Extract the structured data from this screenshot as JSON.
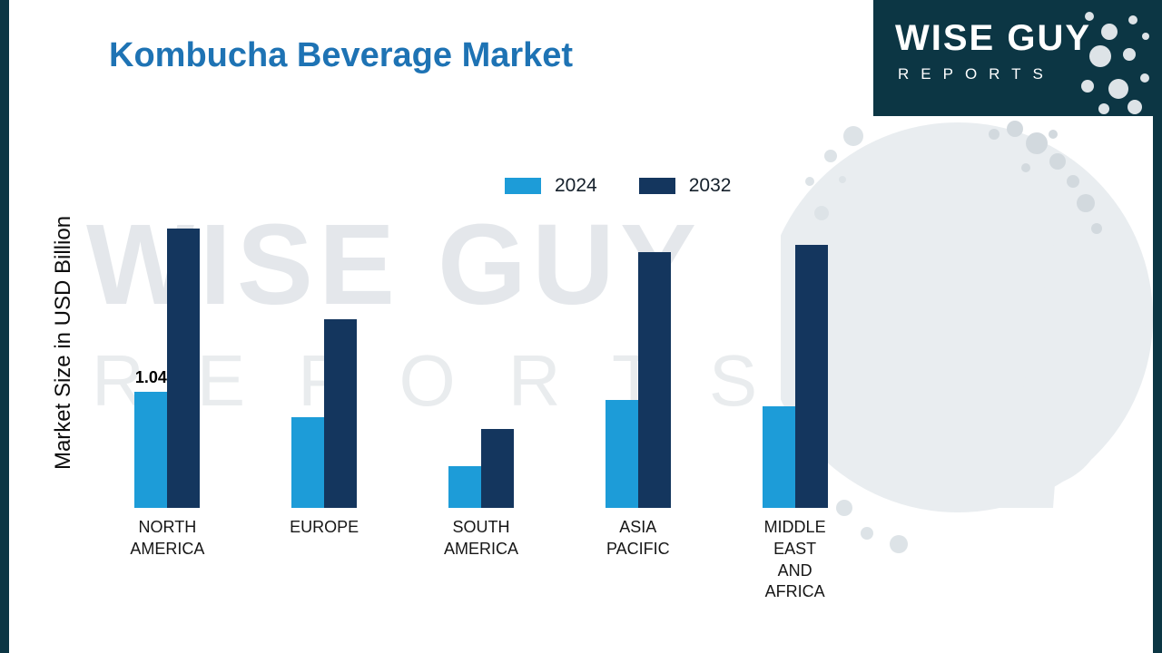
{
  "page": {
    "title": "Kombucha Beverage Market"
  },
  "logo": {
    "wordmark": "WISE GUY",
    "subtitle": "REPORTS"
  },
  "watermark": {
    "line1": "WISE GUY",
    "line2": "REPORTS"
  },
  "colors": {
    "title": "#1e73b4",
    "logo_bg": "#0c3644",
    "bar_2024": "#1d9cd8",
    "bar_2032": "#14365e",
    "head": "#e9edf0"
  },
  "chart_data": {
    "type": "bar",
    "title": "Kombucha Beverage Market",
    "ylabel": "Market Size in USD Billion",
    "xlabel": "",
    "categories": [
      "NORTH AMERICA",
      "EUROPE",
      "SOUTH AMERICA",
      "ASIA PACIFIC",
      "MIDDLE EAST AND AFRICA"
    ],
    "series": [
      {
        "name": "2024",
        "color": "#1d9cd8",
        "values": [
          1.04,
          0.81,
          0.37,
          0.97,
          0.91
        ]
      },
      {
        "name": "2032",
        "color": "#14365e",
        "values": [
          2.5,
          1.69,
          0.71,
          2.29,
          2.36
        ]
      }
    ],
    "annotations": [
      {
        "category_index": 0,
        "series_index": 0,
        "text": "1.04"
      }
    ],
    "legend_position": "top-center",
    "grid": false,
    "axis_lines": false,
    "ylim": [
      0,
      2.7
    ],
    "units": "USD Billion"
  }
}
